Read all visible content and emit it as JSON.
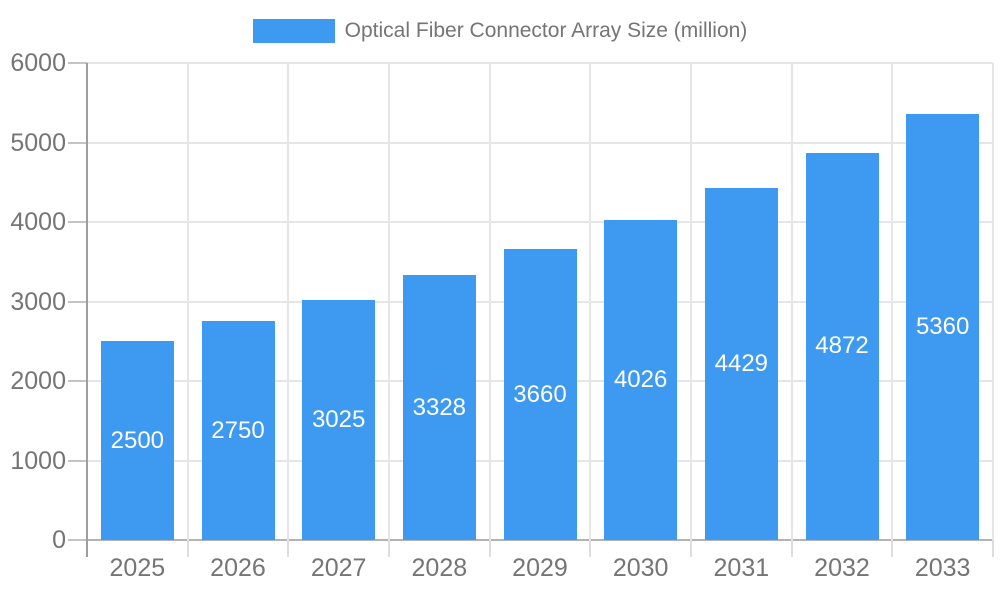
{
  "chart_data": {
    "type": "bar",
    "title": "",
    "legend": "Optical Fiber Connector Array Size (million)",
    "legend_position": "top-center",
    "categories": [
      "2025",
      "2026",
      "2027",
      "2028",
      "2029",
      "2030",
      "2031",
      "2032",
      "2033"
    ],
    "values": [
      2500,
      2750,
      3025,
      3328,
      3660,
      4026,
      4429,
      4872,
      5360
    ],
    "xlabel": "",
    "ylabel": "",
    "ylim": [
      0,
      6000
    ],
    "yticks": [
      0,
      1000,
      2000,
      3000,
      4000,
      5000,
      6000
    ],
    "grid": true,
    "value_label_style": "inside-bar-centered-white",
    "colors": {
      "bar": "#3d9af0",
      "axis_text": "#757575",
      "legend_text": "#757575",
      "value_text": "#ffffff",
      "gridline": "#e6e6e6",
      "baseline": "#b3b3b3",
      "axis_line": "#9e9e9e",
      "y_tick": "#c4c4c4",
      "x_tick": "#dddddd",
      "background": "#ffffff"
    }
  }
}
